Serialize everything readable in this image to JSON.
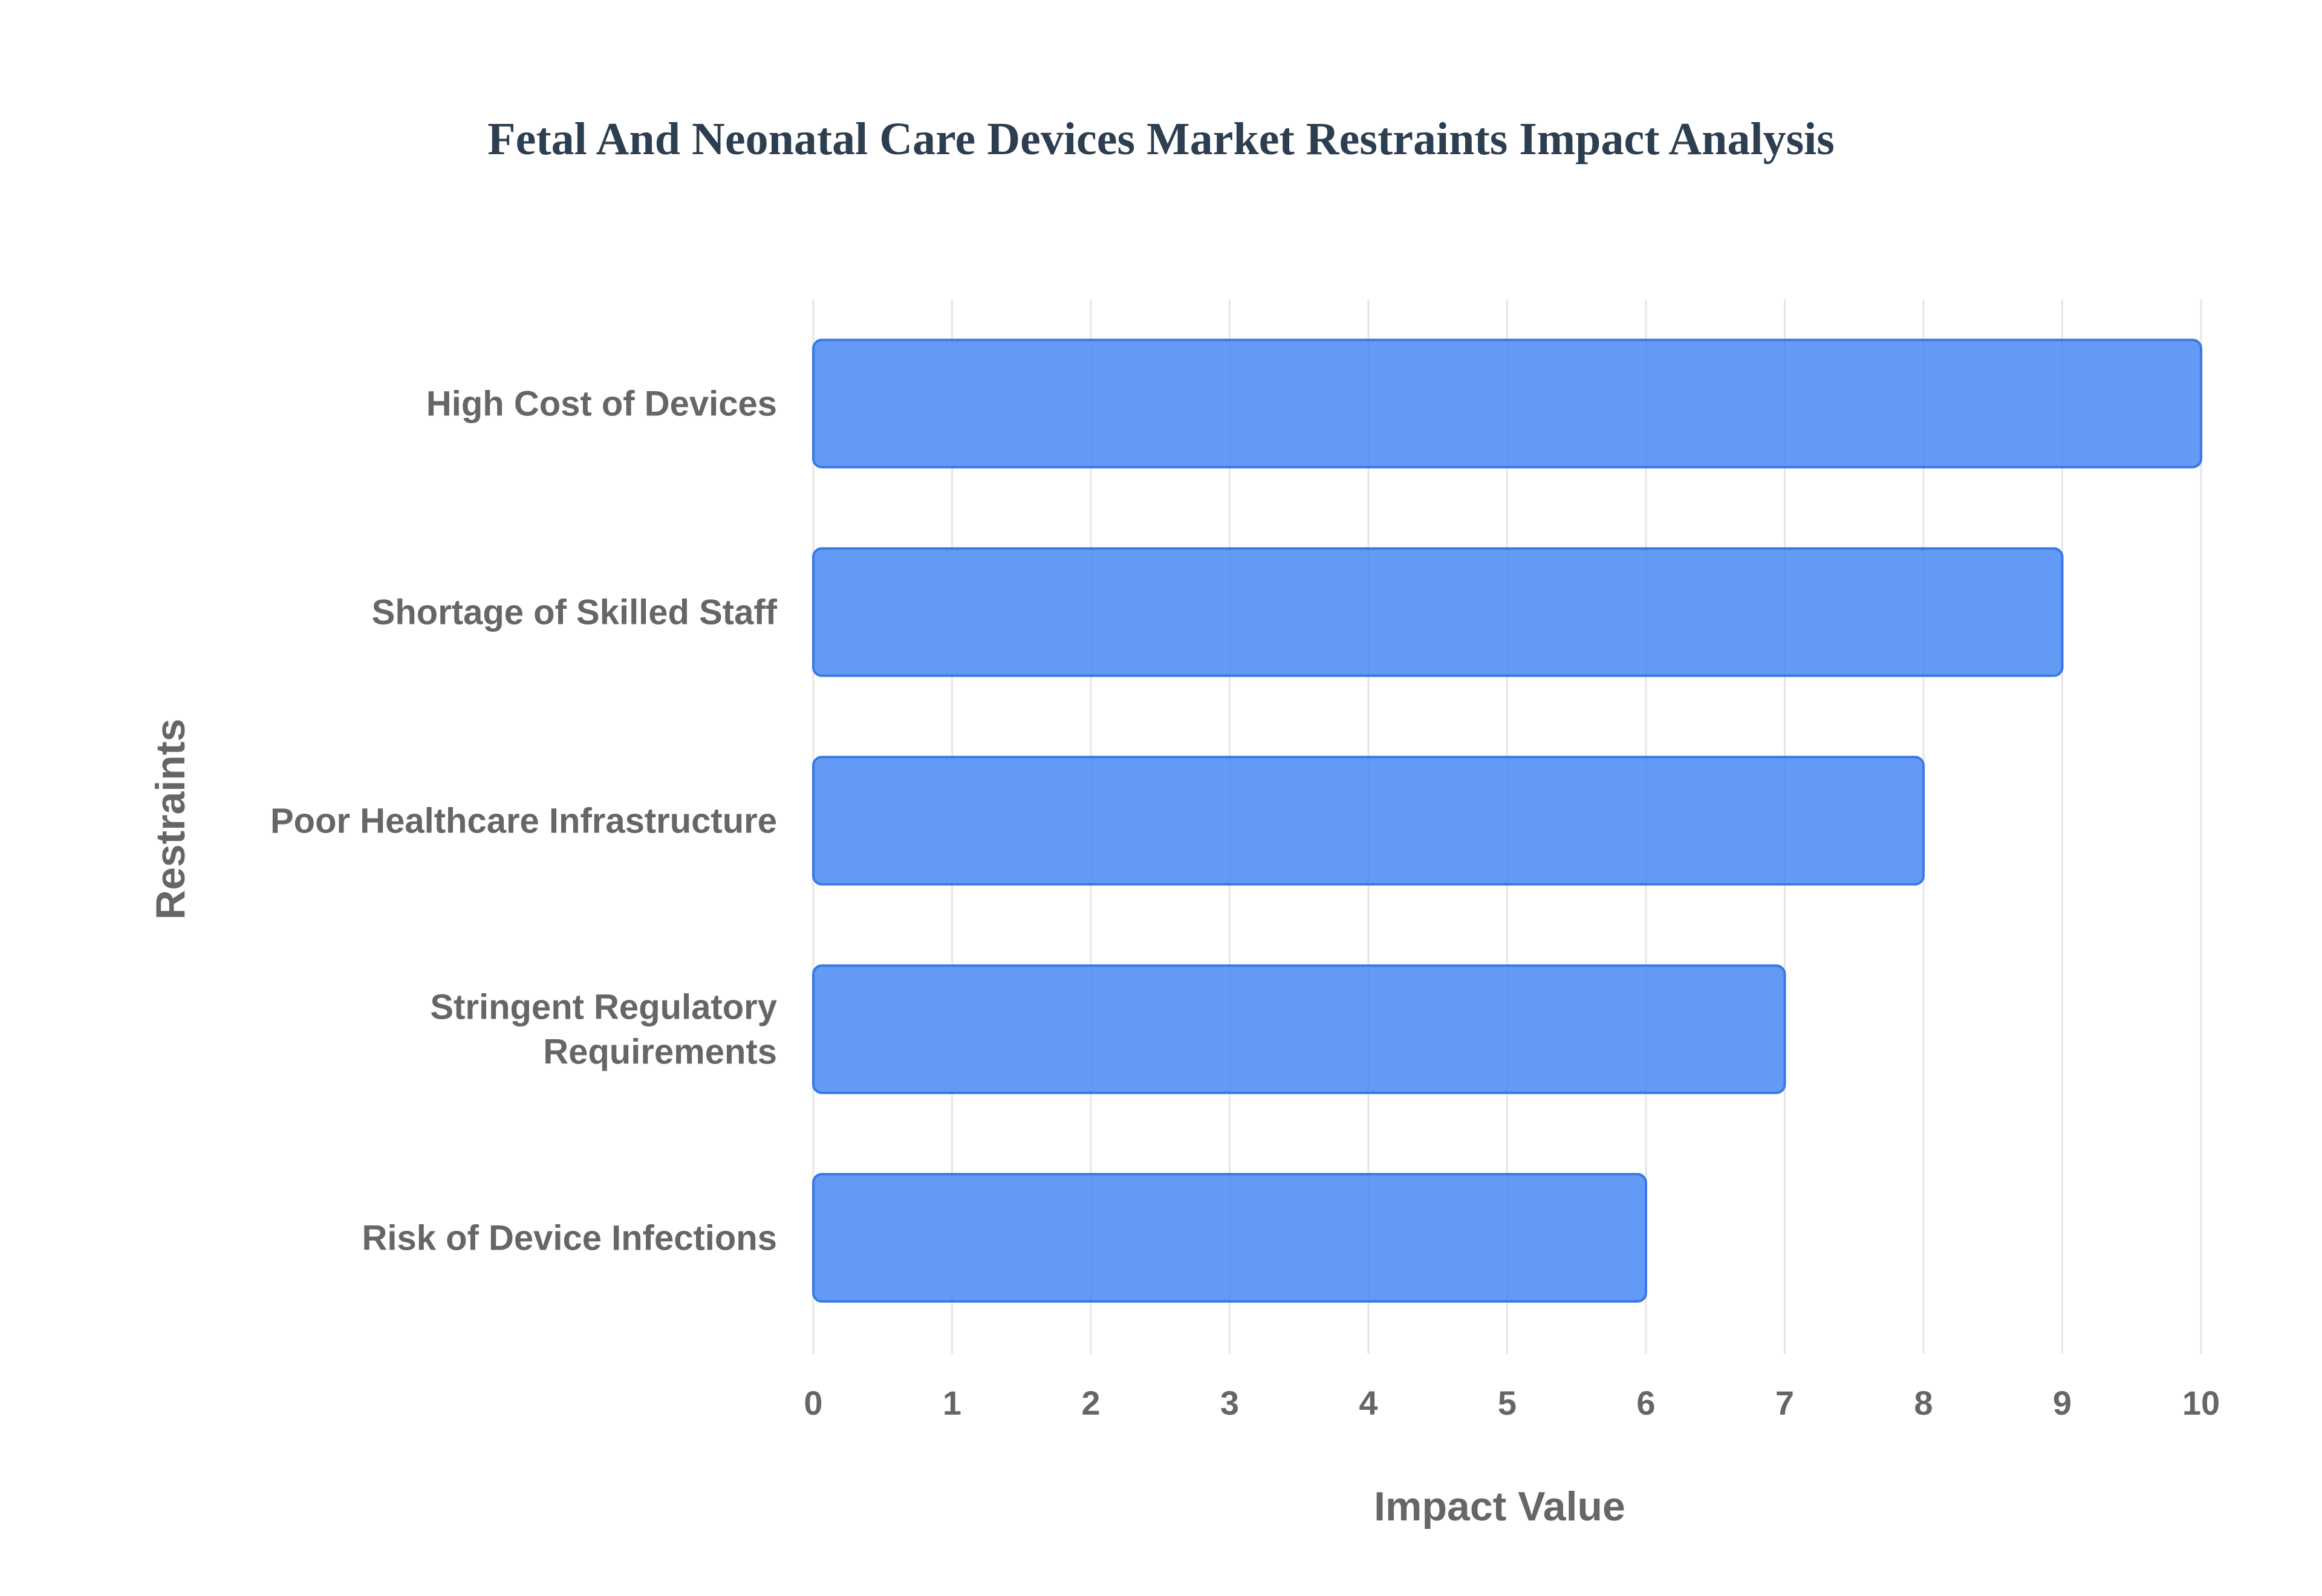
{
  "chart_data": {
    "type": "bar",
    "orientation": "horizontal",
    "title": "Fetal And Neonatal Care Devices Market Restraints Impact Analysis",
    "xlabel": "Impact Value",
    "ylabel": "Restraints",
    "categories": [
      [
        "High Cost of Devices"
      ],
      [
        "Shortage of Skilled Staff"
      ],
      [
        "Poor Healthcare Infrastructure"
      ],
      [
        "Stringent Regulatory",
        "Requirements"
      ],
      [
        "Risk of Device Infections"
      ]
    ],
    "values": [
      10,
      9,
      8,
      7,
      6
    ],
    "xlim": [
      0,
      10
    ],
    "xticks": [
      "0",
      "1",
      "2",
      "3",
      "4",
      "5",
      "6",
      "7",
      "8",
      "9",
      "10"
    ],
    "grid": true,
    "legend": "none",
    "colors": {
      "bar_fill": "#4184f3",
      "bar_border": "#3a78e6",
      "grid": "#e6e6e6",
      "text": "#666666",
      "title": "#2d3e50"
    }
  }
}
